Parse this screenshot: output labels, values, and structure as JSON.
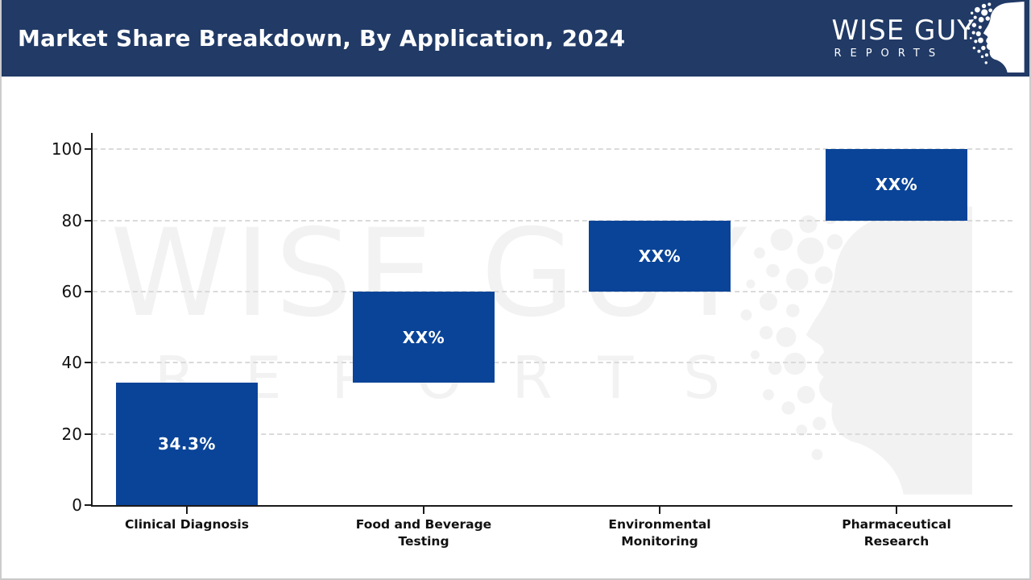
{
  "page": {
    "background": "#ffffff",
    "border_color": "#cccccc"
  },
  "header": {
    "bg_color": "#213a66",
    "title": "Market Share Breakdown, By Application, 2024",
    "logo": {
      "name": "WISE GUY",
      "sub": "REPORTS"
    }
  },
  "watermark": {
    "line1": "WISE GUY",
    "line2": "REPORTS"
  },
  "chart_data": {
    "type": "bar",
    "subtype": "waterfall",
    "title": "Market Share Breakdown, By Application, 2024",
    "categories": [
      "Clinical Diagnosis",
      "Food and Beverage Testing",
      "Environmental Monitoring",
      "Pharmaceutical Research"
    ],
    "category_lines": [
      [
        "Clinical Diagnosis"
      ],
      [
        "Food and Beverage",
        "Testing"
      ],
      [
        "Environmental",
        "Monitoring"
      ],
      [
        "Pharmaceutical",
        "Research"
      ]
    ],
    "segments": [
      {
        "category": "Clinical Diagnosis",
        "start": 0,
        "end": 34.3,
        "label": "34.3%"
      },
      {
        "category": "Food and Beverage Testing",
        "start": 34.3,
        "end": 60,
        "label": "XX%"
      },
      {
        "category": "Environmental Monitoring",
        "start": 60,
        "end": 80,
        "label": "XX%"
      },
      {
        "category": "Pharmaceutical Research",
        "start": 80,
        "end": 100,
        "label": "XX%"
      }
    ],
    "y_ticks": [
      0,
      20,
      40,
      60,
      80,
      100
    ],
    "ylim": [
      0,
      105
    ],
    "xlabel": "",
    "ylabel": "",
    "bar_color": "#0a4498",
    "label_color": "#ffffff",
    "grid": "horizontal-dashed",
    "legend": "none"
  }
}
